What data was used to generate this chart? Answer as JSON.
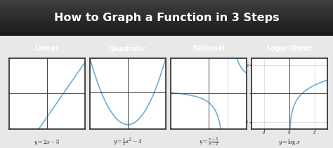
{
  "title": "How to Graph a Function in 3 Steps",
  "title_bg_top": "#3a3a3a",
  "title_bg_bot": "#1a1a1a",
  "title_color": "#ffffff",
  "bg_color": "#e8e8e8",
  "panel_bg": "#ffffff",
  "panel_border": "#333333",
  "curve_color": "#6aaed6",
  "curve_lw": 1.2,
  "labels": [
    "Linear",
    "Quadratic",
    "Rational",
    "Logarithmic"
  ],
  "label_colors": [
    "#9b3fc8",
    "#1ab8e0",
    "#e8197a",
    "#f5a623"
  ],
  "equations": [
    "$y = 2x - 3$",
    "$y = \\frac{1}{2}x^2 - 4$",
    "$y = \\frac{x+3}{x-2}$",
    "$y = \\log x$"
  ]
}
